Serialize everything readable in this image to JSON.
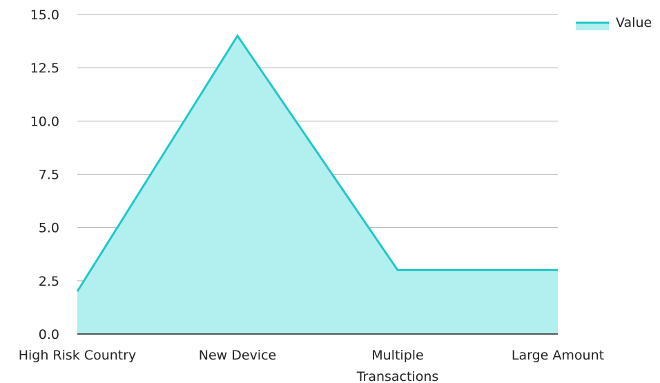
{
  "chart_data": {
    "type": "area",
    "categories": [
      "High Risk Country",
      "New Device",
      "Multiple Transactions",
      "Large Amount"
    ],
    "category_lines": [
      [
        "High Risk Country"
      ],
      [
        "New Device"
      ],
      [
        "Multiple",
        "Transactions"
      ],
      [
        "Large Amount"
      ]
    ],
    "series": [
      {
        "name": "Value",
        "values": [
          2,
          14,
          3,
          3
        ]
      }
    ],
    "ylim": [
      0,
      15
    ],
    "yticks": [
      "0.0",
      "2.5",
      "5.0",
      "7.5",
      "10.0",
      "12.5",
      "15.0"
    ],
    "ytick_values": [
      0,
      2.5,
      5,
      7.5,
      10,
      12.5,
      15
    ],
    "grid": true,
    "legend_position": "top-right",
    "colors": {
      "line": "#1ec8c8",
      "fill": "#b2efef",
      "grid": "#b0b0b0",
      "axis": "#222222"
    }
  }
}
